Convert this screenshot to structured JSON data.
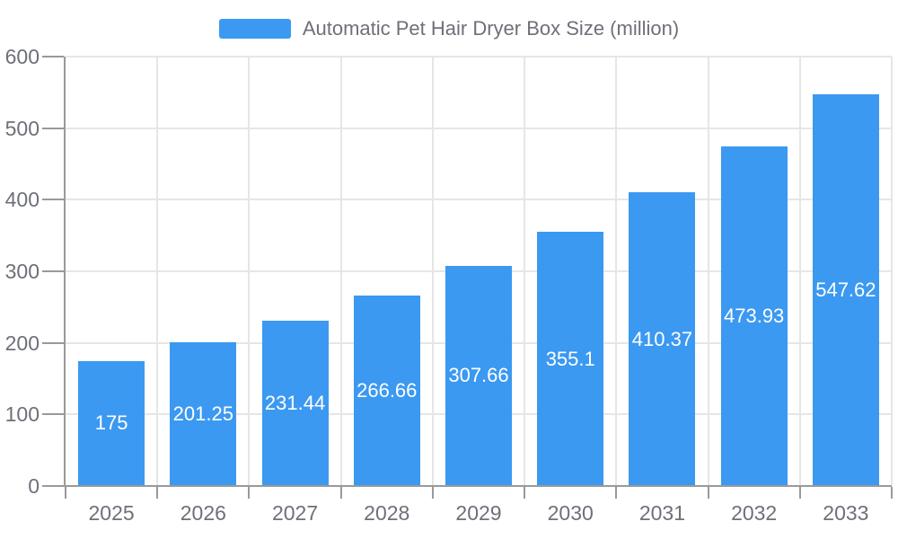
{
  "legend": {
    "label": "Automatic Pet Hair Dryer Box Size (million)"
  },
  "chart_data": {
    "type": "bar",
    "title": "Automatic Pet Hair Dryer Box Size (million)",
    "categories": [
      "2025",
      "2026",
      "2027",
      "2028",
      "2029",
      "2030",
      "2031",
      "2032",
      "2033"
    ],
    "values": [
      175,
      201.25,
      231.44,
      266.66,
      307.66,
      355.1,
      410.37,
      473.93,
      547.62
    ],
    "value_labels": [
      "175",
      "201.25",
      "231.44",
      "266.66",
      "307.66",
      "355.1",
      "410.37",
      "473.93",
      "547.62"
    ],
    "xlabel": "",
    "ylabel": "",
    "ylim": [
      0,
      600
    ],
    "y_ticks": [
      0,
      100,
      200,
      300,
      400,
      500,
      600
    ],
    "grid": true,
    "legend_position": "top-center",
    "value_label_position": "inside-center",
    "colors": {
      "bar": "#3B99F1",
      "axis_text": "#6E7079",
      "axis_line": "#999999",
      "grid_line": "#E6E6E6",
      "value_text": "#FFFFFF",
      "background": "#FFFFFF"
    }
  }
}
